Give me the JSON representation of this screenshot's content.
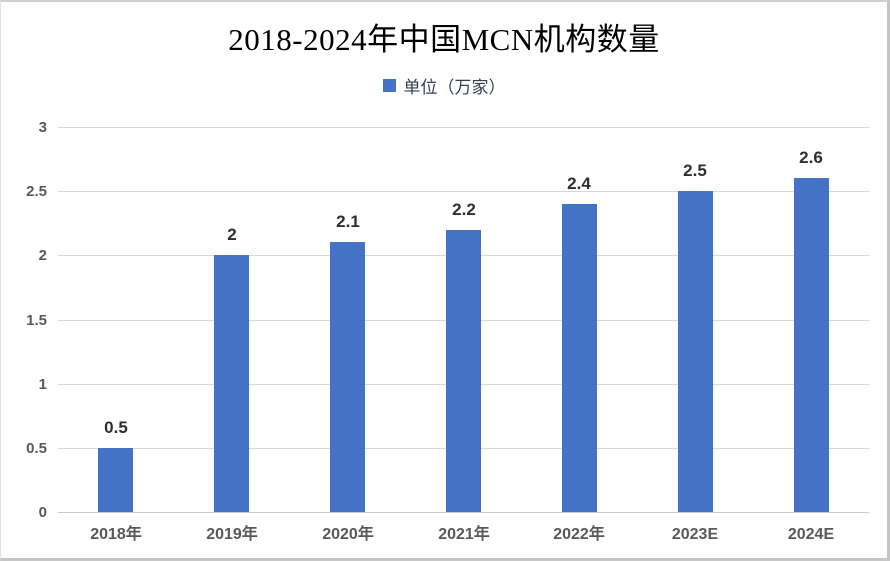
{
  "header": {
    "title": "2018-2024年中国MCN机构数量"
  },
  "legend": {
    "label": "单位（万家）",
    "swatch_icon": "square-icon",
    "swatch_color": "#4472C4"
  },
  "chart_data": {
    "type": "bar",
    "title": "2018-2024年中国MCN机构数量",
    "categories": [
      "2018年",
      "2019年",
      "2020年",
      "2021年",
      "2022年",
      "2023E",
      "2024E"
    ],
    "values": [
      0.5,
      2,
      2.1,
      2.2,
      2.4,
      2.5,
      2.6
    ],
    "data_labels": [
      "0.5",
      "2",
      "2.1",
      "2.2",
      "2.4",
      "2.5",
      "2.6"
    ],
    "xlabel": "",
    "ylabel": "",
    "ylim": [
      0,
      3
    ],
    "yticks": [
      0,
      0.5,
      1,
      1.5,
      2,
      2.5,
      3
    ],
    "ytick_labels": [
      "0",
      "0.5",
      "1",
      "1.5",
      "2",
      "2.5",
      "3"
    ],
    "grid": true,
    "legend_entries": [
      "单位（万家）"
    ],
    "legend_position": "top",
    "bar_color": "#4472C4",
    "gridline_color": "#D9D9D9",
    "axis_label_color": "#595959",
    "value_label_color": "#2E2E2E"
  }
}
